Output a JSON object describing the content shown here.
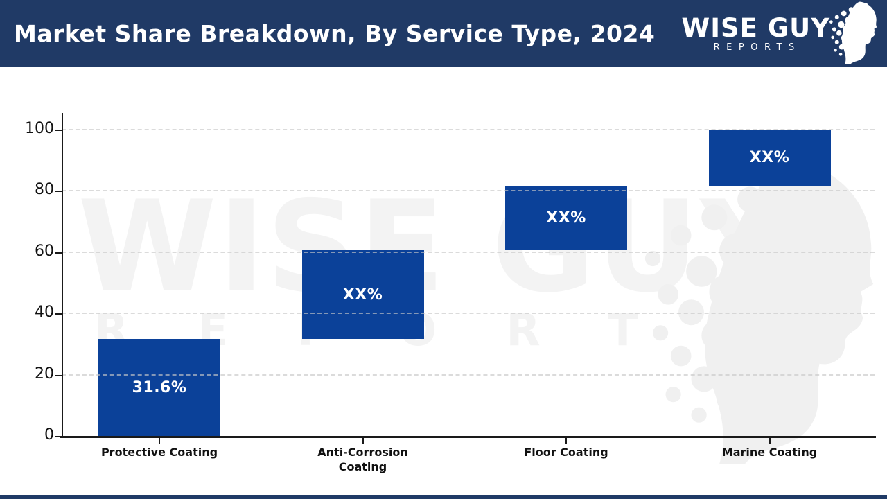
{
  "header": {
    "title": "Market Share Breakdown, By Service Type, 2024",
    "brand": {
      "name": "WISE GUY",
      "sub": "REPORTS"
    }
  },
  "watermark": {
    "line1": "WISE GUY",
    "line2": "REPORTS"
  },
  "colors": {
    "header_bg": "#203a66",
    "footer_bg": "#203a66",
    "bar": "#0b4199",
    "axis": "#1a1a1a",
    "grid": "#d9d9d9",
    "watermark": "#f3f3f3"
  },
  "chart_data": {
    "type": "bar",
    "subtype": "waterfall",
    "title": "Market Share Breakdown, By Service Type, 2024",
    "categories": [
      "Protective Coating",
      "Anti-Corrosion Coating",
      "Floor Coating",
      "Marine Coating"
    ],
    "segments": [
      {
        "start": 0,
        "end": 31.6,
        "label": "31.6%"
      },
      {
        "start": 31.6,
        "end": 60.6,
        "label": "XX%"
      },
      {
        "start": 60.6,
        "end": 81.6,
        "label": "XX%"
      },
      {
        "start": 81.6,
        "end": 100.0,
        "label": "XX%"
      }
    ],
    "yticks": [
      0,
      20,
      40,
      60,
      80,
      100
    ],
    "ylim": [
      0,
      105
    ],
    "xlabel": "",
    "ylabel": "",
    "grid": "horizontal-dashed",
    "legend": "none",
    "bar_color": "#0b4199"
  }
}
